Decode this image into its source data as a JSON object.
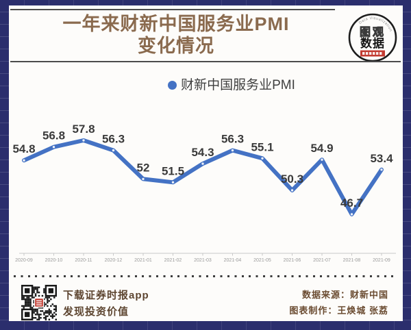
{
  "header": {
    "title_line1": "一年来财新中国服务业PMI",
    "title_line2": "变化情况",
    "logo": {
      "arc_text": "Data Visualization",
      "name_line1": "图观",
      "name_line2": "数据"
    }
  },
  "colors": {
    "frame_navy": "#2b2e6d",
    "line_blue": "#4472c4",
    "title_brown": "#8a6a4e",
    "footer_brown": "#5d4530",
    "logo_red": "#c23b31"
  },
  "chart_data": {
    "type": "line",
    "title": "一年来财新中国服务业PMI变化情况",
    "x": [
      "2020-09",
      "2020-10",
      "2020-11",
      "2020-12",
      "2021-01",
      "2021-02",
      "2021-03",
      "2021-04",
      "2021-05",
      "2021-06",
      "2021-07",
      "2021-08",
      "2021-09"
    ],
    "series": [
      {
        "name": "财新中国服务业PMI",
        "values": [
          54.8,
          56.8,
          57.8,
          56.3,
          52,
          51.5,
          54.3,
          56.3,
          55.1,
          50.3,
          54.9,
          46.7,
          53.4
        ]
      }
    ],
    "xlabel": "",
    "ylabel": "",
    "data_labels": true,
    "grid": false,
    "legend_position": "top-center",
    "line_color": "#4472c4",
    "value_range_shown": [
      46.7,
      57.8
    ]
  },
  "footer": {
    "qr_caption_line1": "下载证券时报app",
    "qr_caption_line2": "发现投资价值",
    "source_label": "数据来源：财新中国",
    "credit_label": "图表制作：王焕城 张荔"
  }
}
